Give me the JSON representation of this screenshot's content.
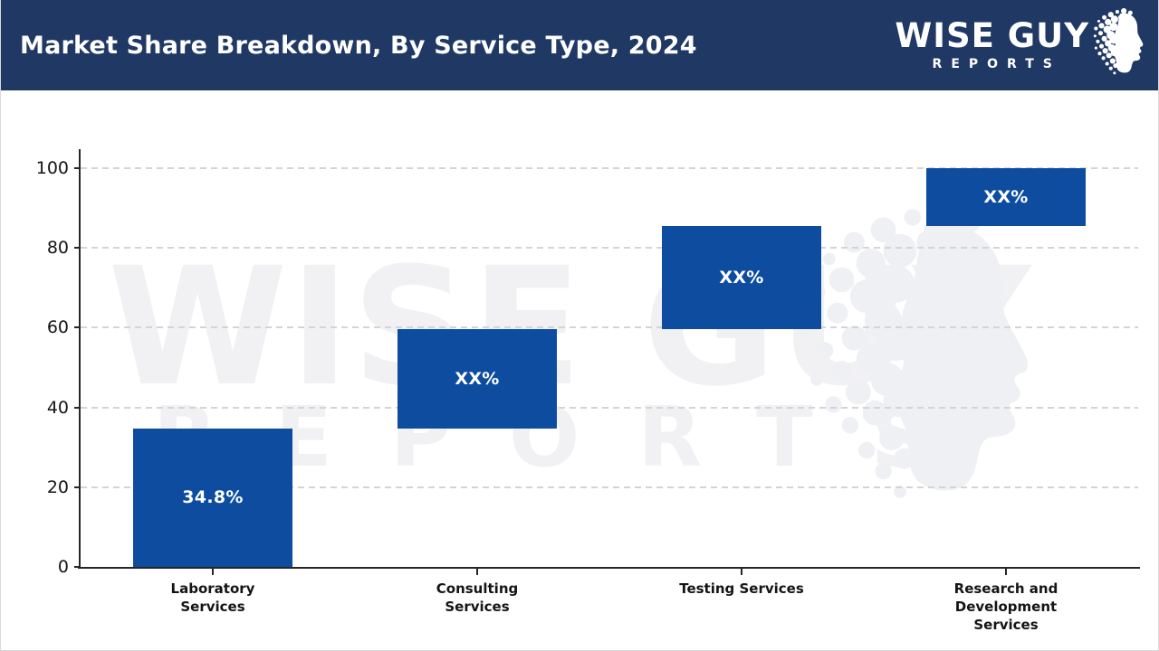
{
  "header": {
    "title": "Market Share Breakdown, By Service Type, 2024",
    "logo": {
      "line1": "WISE GUY",
      "line2": "REPORTS"
    }
  },
  "watermark": {
    "line1": "WISE GUY",
    "line2": "REPORTS"
  },
  "theme": {
    "header_bg": "#1f3864",
    "bar_color": "#0d4c9f",
    "bar_label_color": "#ffffff",
    "grid_color": "#d4d4d4",
    "axis_color": "#262626",
    "watermark_color": "#f1f1f4",
    "logo_color": "#ffffff"
  },
  "chart_data": {
    "type": "bar",
    "subtype": "waterfall",
    "title": "Market Share Breakdown, By Service Type, 2024",
    "xlabel": "",
    "ylabel": "",
    "ylim": [
      0,
      104.8
    ],
    "yticks": [
      0,
      20,
      40,
      60,
      80,
      100
    ],
    "grid": "horizontal-dashed",
    "legend": "none",
    "categories": [
      "Laboratory Services",
      "Consulting Services",
      "Testing Services",
      "Research and Development Services"
    ],
    "category_label_lines": [
      [
        "Laboratory",
        "Services"
      ],
      [
        "Consulting",
        "Services"
      ],
      [
        "Testing Services"
      ],
      [
        "Research and",
        "Development",
        "Services"
      ]
    ],
    "series": [
      {
        "name": "Laboratory Services",
        "start": 0,
        "end": 34.8,
        "label": "34.8%"
      },
      {
        "name": "Consulting Services",
        "start": 34.8,
        "end": 59.6,
        "label": "XX%"
      },
      {
        "name": "Testing Services",
        "start": 59.6,
        "end": 85.6,
        "label": "XX%"
      },
      {
        "name": "Research and Development Services",
        "start": 85.6,
        "end": 100,
        "label": "XX%"
      }
    ]
  }
}
